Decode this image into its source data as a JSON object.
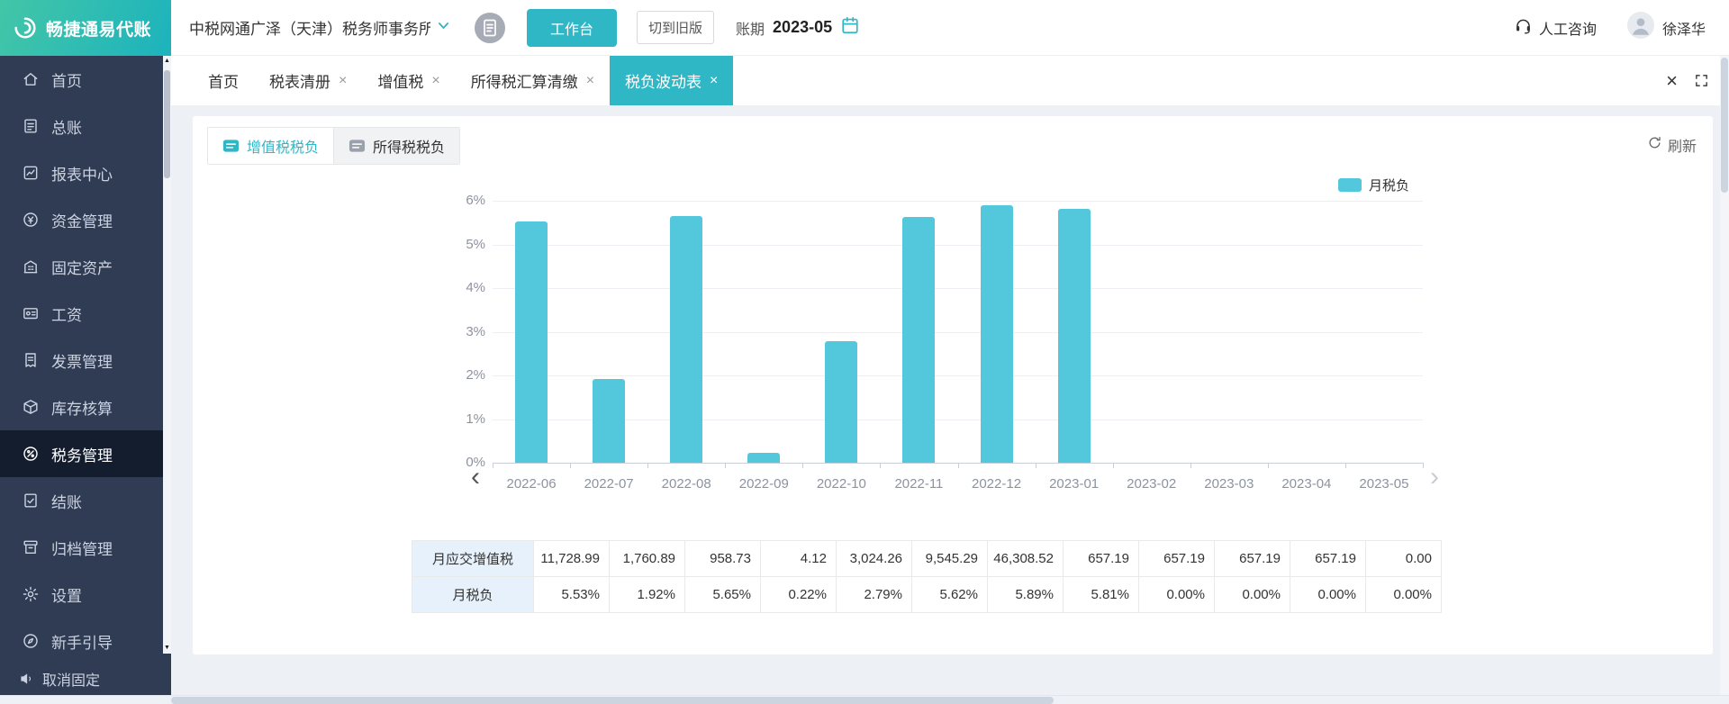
{
  "colors": {
    "accent": "#2fb7c6",
    "bar": "#53c7db",
    "sidebar_bg": "#303c54",
    "sidebar_active_bg": "#141d2e",
    "logo_gradient_start": "#43c6a7",
    "logo_gradient_end": "#1cb3bd",
    "content_bg": "#edf1f6",
    "table_header_bg": "#e6f1fb"
  },
  "topbar": {
    "logo_text": "畅捷通易代账",
    "company": "中税网通广泽（天津）税务师事务所有...",
    "company_dropdown_icon": "chevron-down-icon",
    "notes_icon": "notebook-icon",
    "workbench_label": "工作台",
    "switch_old_label": "切到旧版",
    "period_label": "账期",
    "period_value": "2023-05",
    "period_icon": "calendar-icon",
    "support_icon": "headset-icon",
    "support_label": "人工咨询",
    "user_name": "徐泽华"
  },
  "sidebar": {
    "items": [
      {
        "label": "首页",
        "icon": "home",
        "active": false
      },
      {
        "label": "总账",
        "icon": "ledger",
        "active": false
      },
      {
        "label": "报表中心",
        "icon": "report",
        "active": false
      },
      {
        "label": "资金管理",
        "icon": "funds",
        "active": false
      },
      {
        "label": "固定资产",
        "icon": "assets",
        "active": false
      },
      {
        "label": "工资",
        "icon": "salary",
        "active": false
      },
      {
        "label": "发票管理",
        "icon": "invoice",
        "active": false
      },
      {
        "label": "库存核算",
        "icon": "inventory",
        "active": false
      },
      {
        "label": "税务管理",
        "icon": "tax",
        "active": true
      },
      {
        "label": "结账",
        "icon": "closing",
        "active": false
      },
      {
        "label": "归档管理",
        "icon": "archive",
        "active": false
      },
      {
        "label": "设置",
        "icon": "settings",
        "active": false
      },
      {
        "label": "新手引导",
        "icon": "guide",
        "active": false
      }
    ],
    "unpin_label": "取消固定",
    "unpin_icon": "unpin-icon"
  },
  "tabbar": {
    "tabs": [
      {
        "label": "首页",
        "closable": false,
        "active": false
      },
      {
        "label": "税表清册",
        "closable": true,
        "active": false
      },
      {
        "label": "增值税",
        "closable": true,
        "active": false
      },
      {
        "label": "所得税汇算清缴",
        "closable": true,
        "active": false
      },
      {
        "label": "税负波动表",
        "closable": true,
        "active": true
      }
    ],
    "close_icon": "close-icon",
    "fullscreen_icon": "fullscreen-icon"
  },
  "panel": {
    "toggle": [
      {
        "label": "增值税税负",
        "icon": "vat-badge-icon",
        "active": true
      },
      {
        "label": "所得税税负",
        "icon": "income-tax-badge-icon",
        "active": false
      }
    ],
    "refresh_label": "刷新",
    "refresh_icon": "refresh-icon"
  },
  "chart_data": {
    "type": "bar",
    "title": "",
    "categories": [
      "2022-06",
      "2022-07",
      "2022-08",
      "2022-09",
      "2022-10",
      "2022-11",
      "2022-12",
      "2023-01",
      "2023-02",
      "2023-03",
      "2023-04",
      "2023-05"
    ],
    "series": [
      {
        "name": "月税负",
        "values": [
          5.53,
          1.92,
          5.65,
          0.22,
          2.79,
          5.62,
          5.89,
          5.81,
          0,
          0,
          0,
          0
        ]
      }
    ],
    "unit": "%",
    "y_ticks": [
      "0%",
      "1%",
      "2%",
      "3%",
      "4%",
      "5%",
      "6%"
    ],
    "ylim": [
      0,
      6
    ],
    "grid": true,
    "legend": [
      {
        "label": "月税负",
        "color": "#53c7db"
      }
    ],
    "legend_position": "top-right",
    "pagination_prev": "‹",
    "pagination_next": "›"
  },
  "table": {
    "rows": [
      {
        "header": "月应交增值税",
        "values": [
          "11,728.99",
          "1,760.89",
          "958.73",
          "4.12",
          "3,024.26",
          "9,545.29",
          "46,308.52",
          "657.19",
          "657.19",
          "657.19",
          "657.19",
          "0.00"
        ]
      },
      {
        "header": "月税负",
        "values": [
          "5.53%",
          "1.92%",
          "5.65%",
          "0.22%",
          "2.79%",
          "5.62%",
          "5.89%",
          "5.81%",
          "0.00%",
          "0.00%",
          "0.00%",
          "0.00%"
        ]
      }
    ]
  }
}
